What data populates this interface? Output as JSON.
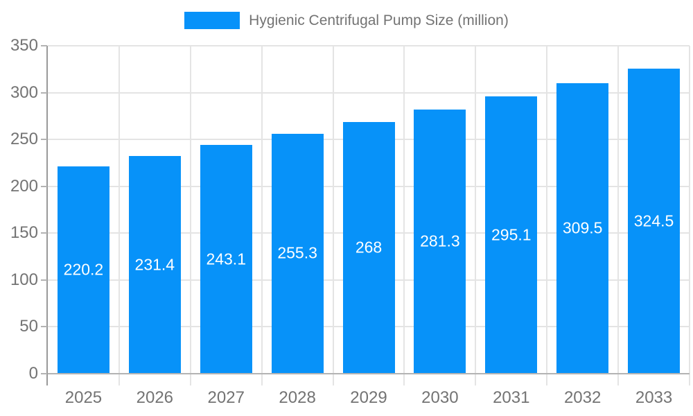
{
  "chart_data": {
    "type": "bar",
    "title": "Hygienic Centrifugal Pump Size (million)",
    "categories": [
      "2025",
      "2026",
      "2027",
      "2028",
      "2029",
      "2030",
      "2031",
      "2032",
      "2033"
    ],
    "series": [
      {
        "name": "Hygienic Centrifugal Pump Size (million)",
        "values": [
          220.2,
          231.4,
          243.1,
          255.3,
          268,
          281.3,
          295.1,
          309.5,
          324.5
        ]
      }
    ],
    "value_labels": [
      "220.2",
      "231.4",
      "243.1",
      "255.3",
      "268",
      "281.3",
      "295.1",
      "309.5",
      "324.5"
    ],
    "xlabel": "",
    "ylabel": "",
    "ylim": [
      0,
      350
    ],
    "yticks": [
      0,
      50,
      100,
      150,
      200,
      250,
      300,
      350
    ],
    "grid": true,
    "legend_position": "top",
    "colors": {
      "bar": "#0792f9",
      "axis_text": "#737373",
      "grid": "#e4e4e4",
      "axis_line": "#999999",
      "baseline": "#b3b3b3",
      "value_label": "#ffffff",
      "background": "#ffffff"
    }
  }
}
